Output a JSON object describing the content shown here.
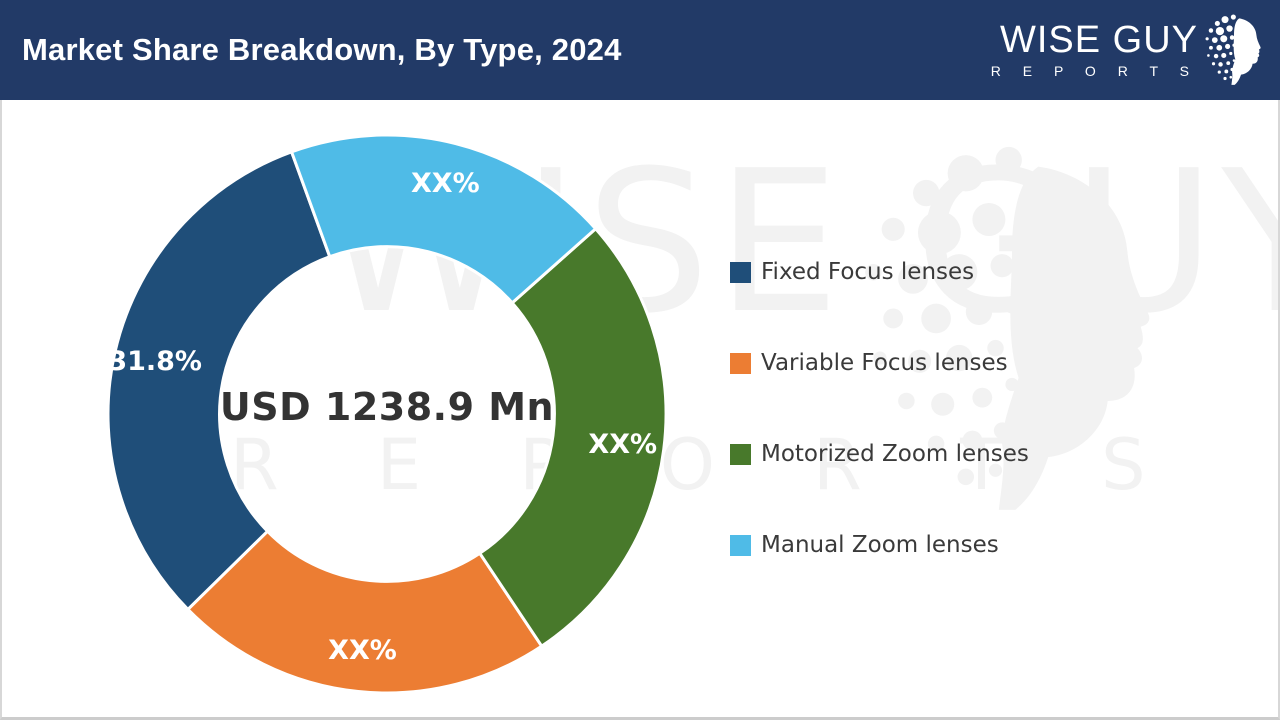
{
  "header": {
    "title": "Market Share Breakdown, By Type, 2024",
    "logo": {
      "line1": "WISE GUY",
      "line2": "R E P O R T S"
    }
  },
  "watermark": {
    "line1": "WISE GUY",
    "line2": "R E P O R T S"
  },
  "chart_data": {
    "type": "pie",
    "subtype": "donut",
    "title": "Market Share Breakdown, By Type, 2024",
    "center_label": "USD 1238.9 Mn",
    "categories": [
      "Fixed Focus lenses",
      "Variable Focus lenses",
      "Motorized Zoom lenses",
      "Manual Zoom lenses"
    ],
    "values_pct": [
      31.8,
      22.0,
      27.2,
      19.0
    ],
    "slice_labels": [
      "31.8%",
      "XX%",
      "XX%",
      "XX%"
    ],
    "colors": [
      "#1F4E79",
      "#EC7D33",
      "#48792B",
      "#4FBBE7"
    ],
    "start_angle_deg": 110,
    "direction": "counterclockwise",
    "inner_radius_ratio": 0.6,
    "legend_position": "right",
    "slice_label_color": "#ffffff",
    "center_label_color": "#333333"
  }
}
